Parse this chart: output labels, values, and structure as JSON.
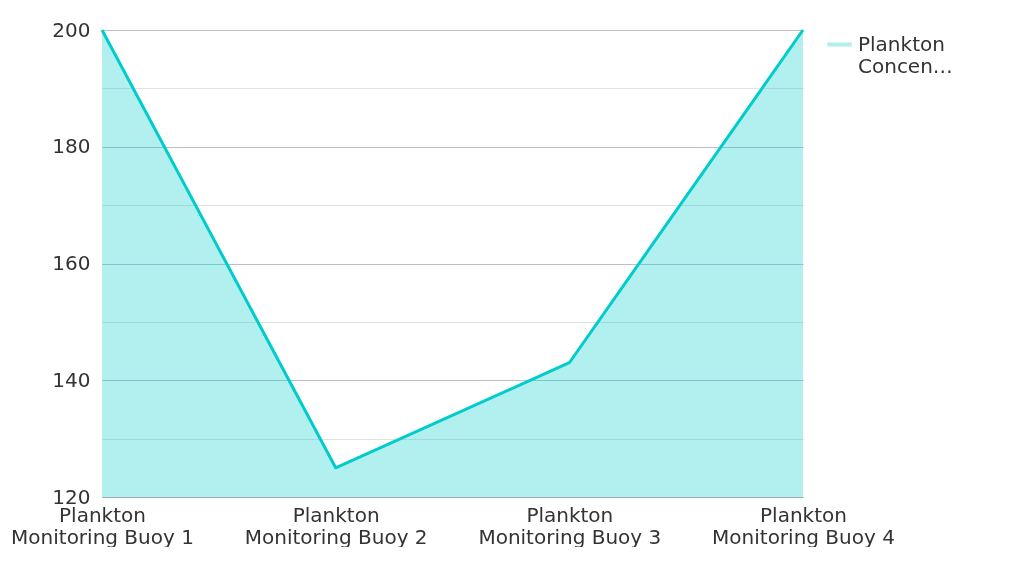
{
  "chart_data": {
    "type": "area",
    "categories": [
      "Plankton Monitoring Buoy 1",
      "Plankton Monitoring Buoy 2",
      "Plankton Monitoring Buoy 3",
      "Plankton Monitoring Buoy 4"
    ],
    "series": [
      {
        "name": "Plankton Concen…",
        "color": "#00cccc",
        "values": [
          200,
          125,
          143,
          200
        ]
      }
    ],
    "ylim": [
      120,
      200
    ],
    "yticks": [
      120,
      {
        "value": 130,
        "label": null
      },
      140,
      {
        "value": 150,
        "label": null
      },
      160,
      {
        "value": 170,
        "label": null
      },
      180,
      {
        "value": 190,
        "label": null
      },
      200
    ],
    "grid": "y",
    "legend": "top right"
  }
}
